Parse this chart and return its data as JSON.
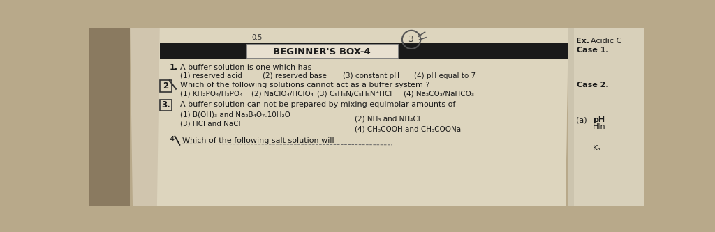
{
  "outer_bg": "#b8a98a",
  "left_shadow": "#8a7a60",
  "page_bg": "#d8cdb5",
  "page_bg_light": "#e8e0cc",
  "header_bg": "#1a1a1a",
  "header_text": "BEGINNER'S BOX-4",
  "header_text_color": "#ffffff",
  "text_color": "#1a1a1a",
  "right_bg": "#ddd5be",
  "q1_num": "1.",
  "q1_text": "A buffer solution is one which has-",
  "q1_opt1": "(1) reserved acid",
  "q1_opt2": "(2) reserved base",
  "q1_opt3": "(3) constant pH",
  "q1_opt4": "(4) pH equal to 7",
  "q2_text": "Which of the following solutions cannot act as a buffer system ?",
  "q2_opt1": "(1) KH₂PO₄/H₃PO₄",
  "q2_opt2": "(2) NaClO₄/HClO₄",
  "q2_opt3": "(3) C₅H₅N/C₅H₅N⁺HCl",
  "q2_opt4": "(4) Na₂CO₃/NaHCO₃",
  "q3_text": "A buffer solution can not be prepared by mixing equimolar amounts of-",
  "q3_opt1": "(1) B(OH)₃ and Na₂B₄O₇.10H₂O",
  "q3_opt2": "(2) NH₃ and NH₄Cl",
  "q3_opt3": "(3) HCl and NaCl",
  "q3_opt4": "(4) CH₃COOH and CH₃COONa",
  "q4_text": "Which of the following salt solution will",
  "top_formula": "0.5",
  "right1": "Ex.",
  "right1b": "Acidic C",
  "right2": "Case 1.",
  "right3": "Case 2.",
  "right4a": "(a)",
  "right4b": "pH",
  "right5": "Hln",
  "right6": "Kₐ"
}
